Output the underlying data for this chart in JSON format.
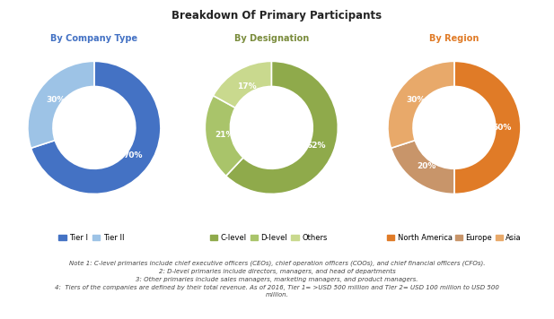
{
  "title": "Breakdown Of Primary Participants",
  "charts": [
    {
      "subtitle": "By Company Type",
      "subtitle_color": "#4472c4",
      "values": [
        70,
        30
      ],
      "colors": [
        "#4472c4",
        "#9dc3e6"
      ],
      "labels": [
        "70%",
        "30%"
      ],
      "legend_labels": [
        "Tier I",
        "Tier II"
      ],
      "startangle": 90,
      "counterclock": false
    },
    {
      "subtitle": "By Designation",
      "subtitle_color": "#7a8c3c",
      "values": [
        62,
        21,
        17
      ],
      "colors": [
        "#8faa4b",
        "#a9c46a",
        "#c9d98e"
      ],
      "labels": [
        "62%",
        "21%",
        "17%"
      ],
      "legend_labels": [
        "C-level",
        "D-level",
        "Others"
      ],
      "startangle": 90,
      "counterclock": false
    },
    {
      "subtitle": "By Region",
      "subtitle_color": "#e07b27",
      "values": [
        50,
        20,
        30
      ],
      "colors": [
        "#e07b27",
        "#c8956a",
        "#e8a96a"
      ],
      "labels": [
        "50%",
        "20%",
        "30%"
      ],
      "legend_labels": [
        "North America",
        "Europe",
        "Asia"
      ],
      "startangle": 90,
      "counterclock": false
    }
  ],
  "note_lines": [
    "Note 1: C-level primaries include chief executive officers (CEOs), chief operation officers (COOs), and chief financial officers (CFOs).",
    "2: D-level primaries include directors, managers, and head of departments",
    "3: Other primaries include sales managers, marketing managers, and product managers.",
    "4:  Tiers of the companies are defined by their total revenue. As of 2016, Tier 1= >USD 500 million and Tier 2= USD 100 million to USD 500",
    "million."
  ],
  "background_color": "#ffffff",
  "donut_width": 0.38,
  "label_r": 0.72
}
